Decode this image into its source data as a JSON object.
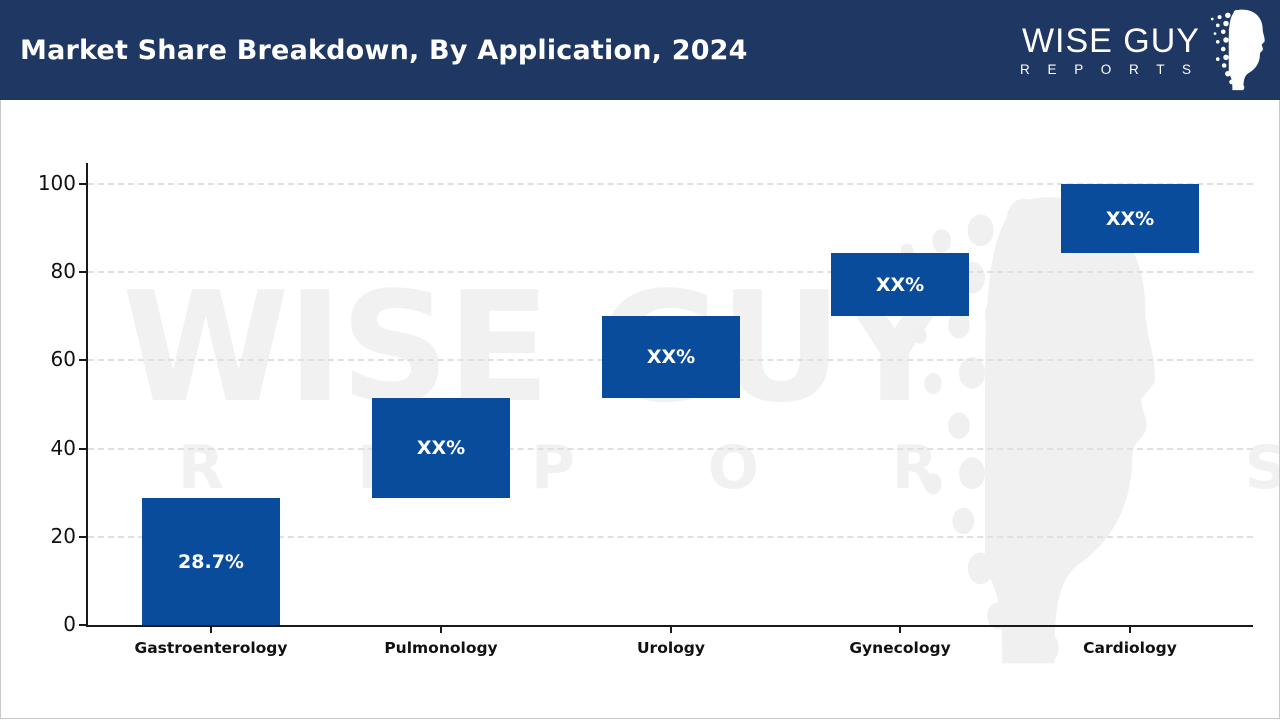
{
  "header": {
    "title": "Market Share Breakdown, By Application, 2024",
    "background_color": "#1f3763",
    "logo": {
      "line1": "WISE GUY",
      "line2": "R E P O R T S"
    }
  },
  "watermark": {
    "line1": "WISE GUY",
    "line2": "R E P O R T S"
  },
  "chart_data": {
    "type": "bar",
    "subtype": "waterfall",
    "title": "Market Share Breakdown, By Application, 2024",
    "categories": [
      "Gastroenterology",
      "Pulmonology",
      "Urology",
      "Gynecology",
      "Cardiology"
    ],
    "segments": [
      {
        "category": "Gastroenterology",
        "start": 0,
        "end": 28.7,
        "label": "28.7%"
      },
      {
        "category": "Pulmonology",
        "start": 28.7,
        "end": 51.4,
        "label": "XX%"
      },
      {
        "category": "Urology",
        "start": 51.4,
        "end": 70.0,
        "label": "XX%"
      },
      {
        "category": "Gynecology",
        "start": 70.0,
        "end": 84.3,
        "label": "XX%"
      },
      {
        "category": "Cardiology",
        "start": 84.3,
        "end": 100.0,
        "label": "XX%"
      }
    ],
    "yticks": [
      0,
      20,
      40,
      60,
      80,
      100
    ],
    "ylim": [
      0,
      104.8
    ],
    "xlabel": "",
    "ylabel": "",
    "grid": "horizontal dashed",
    "legend": "none",
    "bar_color": "#0a4c9c",
    "bar_label_color": "#ffffff",
    "axis_color": "#1a1a1a"
  }
}
